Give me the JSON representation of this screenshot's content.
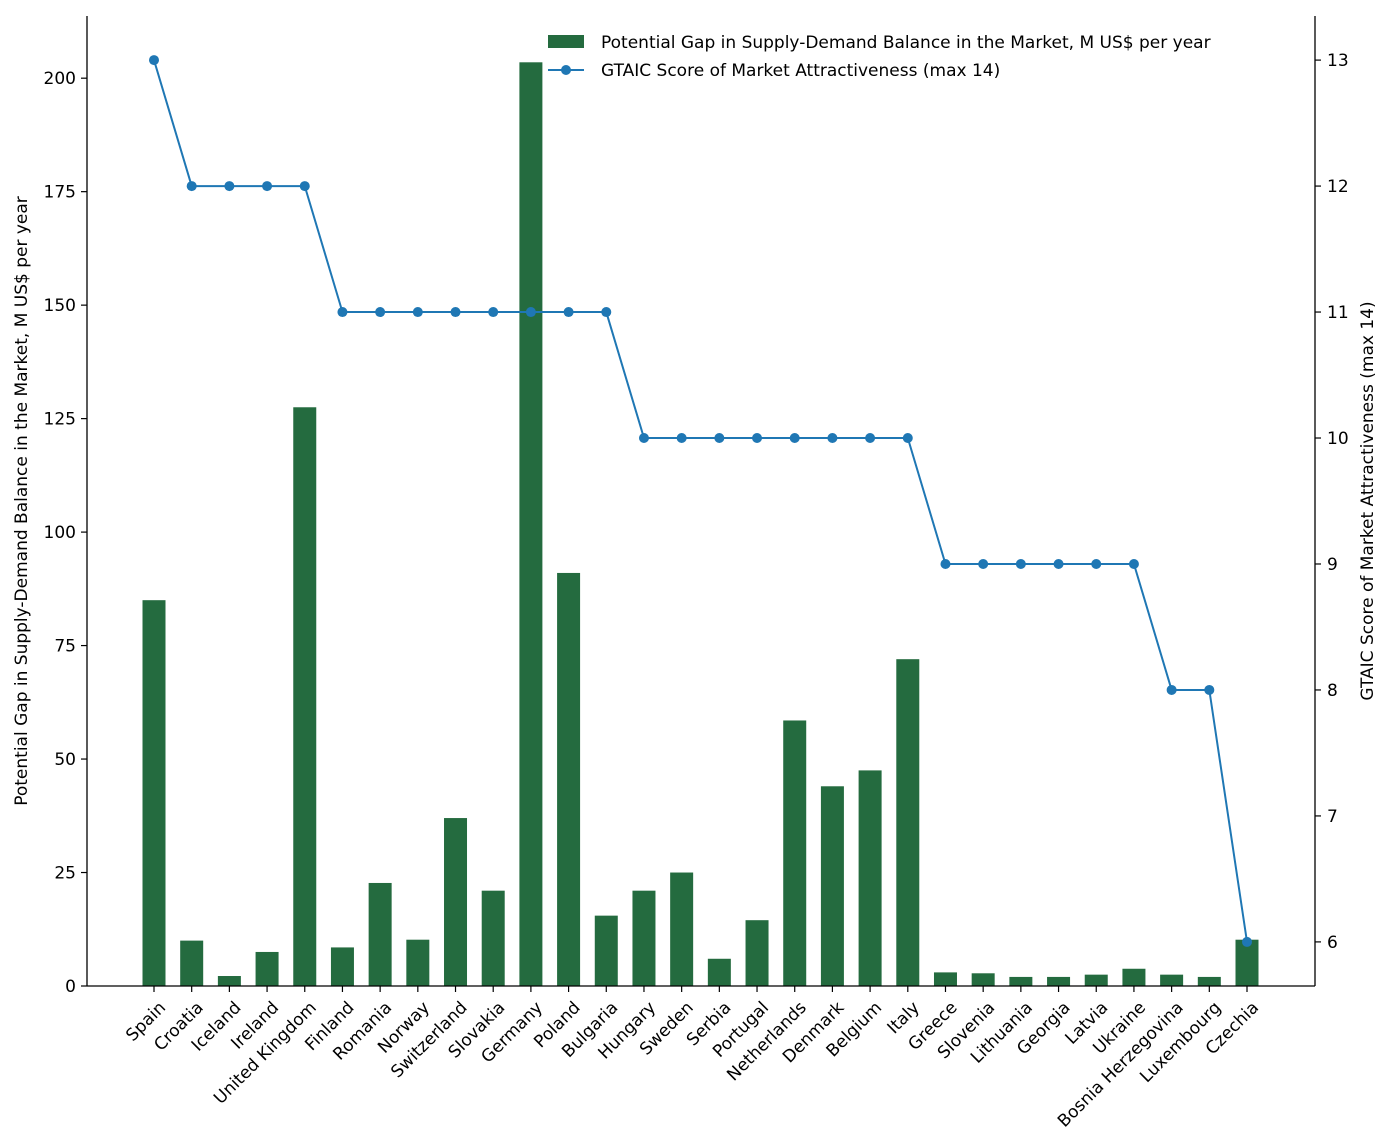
{
  "chart_data": {
    "type": "bar",
    "categories": [
      "Spain",
      "Croatia",
      "Iceland",
      "Ireland",
      "United Kingdom",
      "Finland",
      "Romania",
      "Norway",
      "Switzerland",
      "Slovakia",
      "Germany",
      "Poland",
      "Bulgaria",
      "Hungary",
      "Sweden",
      "Serbia",
      "Portugal",
      "Netherlands",
      "Denmark",
      "Belgium",
      "Italy",
      "Greece",
      "Slovenia",
      "Lithuania",
      "Georgia",
      "Latvia",
      "Ukraine",
      "Bosnia Herzegovina",
      "Luxembourg",
      "Czechia"
    ],
    "series": [
      {
        "name": "Potential Gap in Supply-Demand Balance in the Market, M US$ per year",
        "type": "bar",
        "axis": "left",
        "color": "#246b3f",
        "values": [
          85,
          10,
          2.2,
          7.5,
          127.5,
          8.5,
          22.7,
          10.2,
          37,
          21,
          203.5,
          91,
          15.5,
          21,
          25,
          6,
          14.5,
          58.5,
          44,
          47.5,
          72,
          3,
          2.8,
          2,
          2,
          2.5,
          3.8,
          2.5,
          2,
          10.2
        ]
      },
      {
        "name": "GTAIC Score of Market Attractiveness (max 14)",
        "type": "line",
        "axis": "right",
        "color": "#1f77b4",
        "values": [
          13,
          12,
          12,
          12,
          12,
          11,
          11,
          11,
          11,
          11,
          11,
          11,
          11,
          10,
          10,
          10,
          10,
          10,
          10,
          10,
          10,
          9,
          9,
          9,
          9,
          9,
          9,
          8,
          8,
          6
        ]
      }
    ],
    "ylabel": "Potential Gap in Supply-Demand Balance in the Market, M US$ per year",
    "y2label": "GTAIC Score of Market Attractiveness (max 14)",
    "ylim": [
      0,
      213.7
    ],
    "y2lim": [
      5.65,
      13.35
    ],
    "yticks": [
      "0",
      "25",
      "50",
      "75",
      "100",
      "125",
      "150",
      "175",
      "200"
    ],
    "y2ticks": [
      "6",
      "7",
      "8",
      "9",
      "10",
      "11",
      "12",
      "13"
    ],
    "grid": false,
    "legend_position": "top-right"
  }
}
